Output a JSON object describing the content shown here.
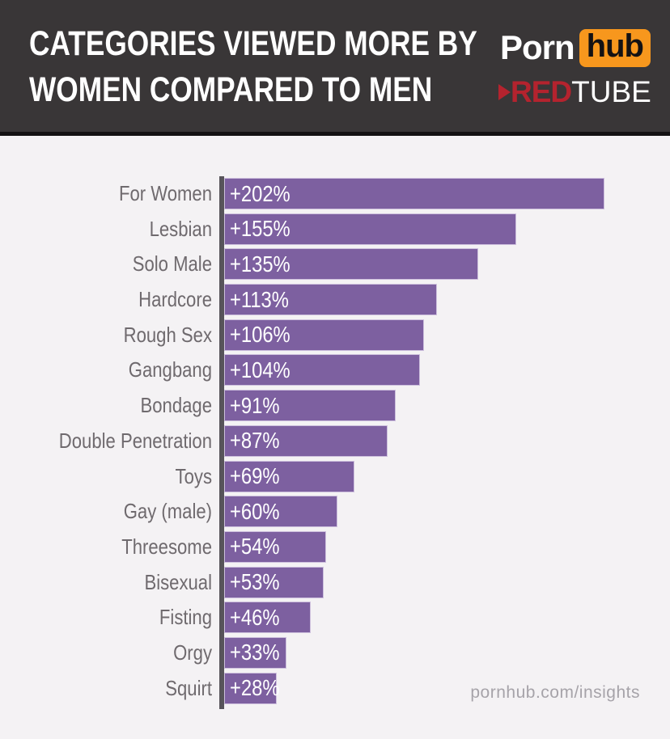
{
  "header": {
    "title_line1": "CATEGORIES VIEWED MORE BY",
    "title_line2": "WOMEN COMPARED TO MEN",
    "pornhub_logo": {
      "part1": "Porn",
      "part2": "hub"
    },
    "redtube_logo": {
      "part1": "RED",
      "part2": "TUBE"
    }
  },
  "footer": {
    "source": "pornhub.com/insights"
  },
  "colors": {
    "header_bg": "#393637",
    "header_border": "#141213",
    "chart_bg": "#f4f2f4",
    "bar_purple": "#7d60a0",
    "axis_gray": "#57545a",
    "category_label_gray": "#6f6a6e",
    "pornhub_orange": "#f7971d",
    "redtube_red": "#b4232e",
    "footer_gray": "#a6a3a9"
  },
  "chart_data": {
    "type": "bar",
    "orientation": "horizontal",
    "title": "Categories viewed more by women compared to men",
    "categories": [
      "For Women",
      "Lesbian",
      "Solo Male",
      "Hardcore",
      "Rough Sex",
      "Gangbang",
      "Bondage",
      "Double Penetration",
      "Toys",
      "Gay (male)",
      "Threesome",
      "Bisexual",
      "Fisting",
      "Orgy",
      "Squirt"
    ],
    "values": [
      202,
      155,
      135,
      113,
      106,
      104,
      91,
      87,
      69,
      60,
      54,
      53,
      46,
      33,
      28
    ],
    "value_format": "+{value}%",
    "xlim": [
      0,
      202
    ],
    "bar_color": "#7d60a0",
    "grid": false,
    "legend": false
  }
}
